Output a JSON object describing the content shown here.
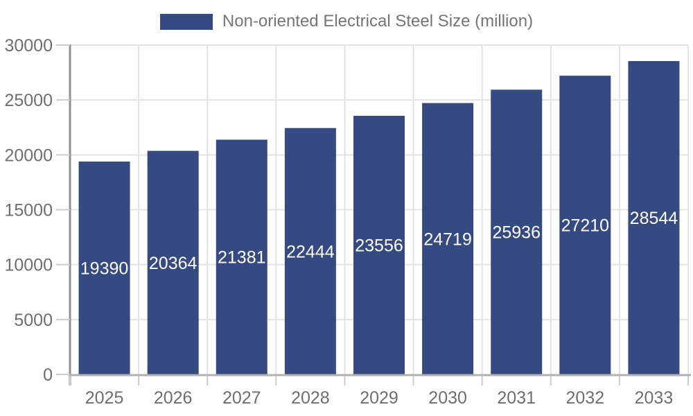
{
  "legend": {
    "label": "Non-oriented Electrical Steel Size (million)"
  },
  "chart_data": {
    "type": "bar",
    "title": "",
    "xlabel": "",
    "ylabel": "",
    "categories": [
      "2025",
      "2026",
      "2027",
      "2028",
      "2029",
      "2030",
      "2031",
      "2032",
      "2033"
    ],
    "series": [
      {
        "name": "Non-oriented Electrical Steel Size (million)",
        "values": [
          19390,
          20364,
          21381,
          22444,
          23556,
          24719,
          25936,
          27210,
          28544
        ]
      }
    ],
    "bar_value_labels_shown": true,
    "ylim": [
      0,
      30000
    ],
    "yticks": [
      0,
      5000,
      10000,
      15000,
      20000,
      25000,
      30000
    ],
    "grid": true,
    "legend_position": "top-center",
    "colors": {
      "bar": "#354a81",
      "grid": "#e3e3e3",
      "tick": "#cccccc",
      "axis_y": "#8f8f8f",
      "axis_x": "#b0b0b0",
      "tick_label": "#6e6e6e",
      "bar_label": "#ffffff",
      "legend_text": "#757575",
      "background": "#ffffff"
    }
  }
}
